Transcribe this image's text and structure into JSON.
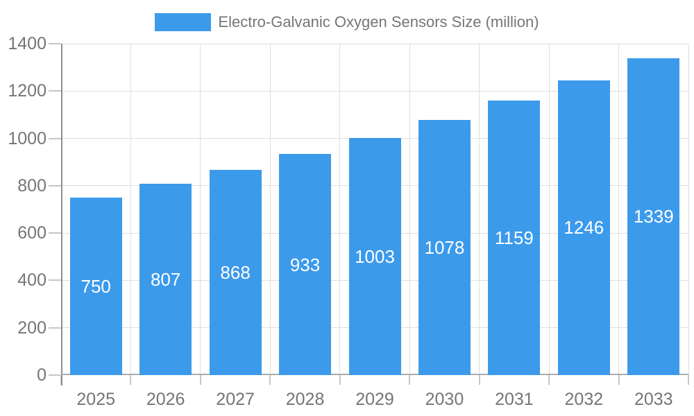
{
  "legend": {
    "label": "Electro-Galvanic Oxygen Sensors Size (million)",
    "swatch_color": "#3C9AEB",
    "position": "top-center"
  },
  "chart_data": {
    "type": "bar",
    "title": "Electro-Galvanic Oxygen Sensors Size (million)",
    "categories": [
      "2025",
      "2026",
      "2027",
      "2028",
      "2029",
      "2030",
      "2031",
      "2032",
      "2033"
    ],
    "values": [
      750,
      807,
      868,
      933,
      1003,
      1078,
      1159,
      1246,
      1339
    ],
    "bar_color": "#3C9AEB",
    "bar_label_color": "#ffffff",
    "xlabel": "",
    "ylabel": "",
    "ylim": [
      0,
      1400
    ],
    "yticks": [
      0,
      200,
      400,
      600,
      800,
      1000,
      1200,
      1400
    ],
    "grid": true,
    "legend_position": "top-center",
    "axis_text_color": "#757575",
    "gridline_color": "#dedede",
    "axis_line_color": "#8f8f8f"
  }
}
